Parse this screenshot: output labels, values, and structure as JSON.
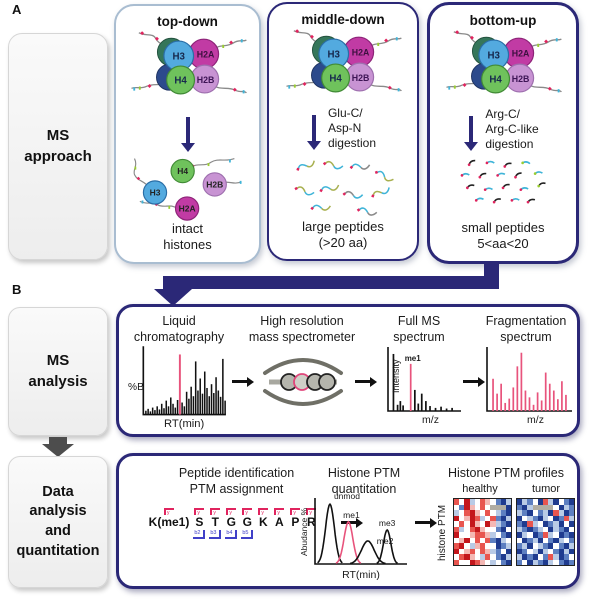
{
  "colors": {
    "navy": "#2b2877",
    "pink": "#e8537c",
    "red_mark": "#e0245e",
    "blue_ion": "#4040c8",
    "arrow_gray": "#4d4d4d"
  },
  "panel_a": {
    "label": "A",
    "sidebar_lines": [
      "MS",
      "approach"
    ],
    "histones": [
      {
        "label": "H3",
        "color": "#53aadf",
        "stroke": "#2a6ea6"
      },
      {
        "label": "H2A",
        "color": "#c13ba4",
        "stroke": "#8d2478"
      },
      {
        "label": "H4",
        "color": "#6fc25c",
        "stroke": "#418a36"
      },
      {
        "label": "H2B",
        "color": "#c893d3",
        "stroke": "#9e6fae"
      }
    ],
    "boxes": [
      {
        "title": "top-down",
        "digestion_lines": [],
        "caption_lines": [
          "intact",
          "histones"
        ]
      },
      {
        "title": "middle-down",
        "digestion_lines": [
          "Glu-C/",
          "Asp-N",
          "digestion"
        ],
        "caption_lines": [
          "large peptides",
          "(>20 aa)"
        ]
      },
      {
        "title": "bottom-up",
        "digestion_lines": [
          "Arg-C/",
          "Arg-C-like",
          "digestion"
        ],
        "caption_lines": [
          "small peptides",
          "5<aa<20"
        ]
      }
    ]
  },
  "panel_b": {
    "label": "B",
    "ms_sidebar_lines": [
      "MS",
      "analysis"
    ],
    "data_sidebar_lines": [
      "Data",
      "analysis",
      "and",
      "quantitation"
    ],
    "analysis_titles": {
      "lc": [
        "Liquid",
        "chromatography"
      ],
      "spec": [
        "High resolution",
        "mass spectrometer"
      ],
      "fullms": [
        "Full MS",
        "spectrum"
      ],
      "frag": [
        "Fragmentation",
        "spectrum"
      ]
    },
    "quant_titles": {
      "pep": [
        "Peptide identification",
        "PTM assignment"
      ],
      "quant": [
        "Histone PTM",
        "quantitation"
      ],
      "profiles": "Histone PTM profiles"
    },
    "sequence": {
      "residues": [
        "K(me1)",
        "S",
        "T",
        "G",
        "G",
        "K",
        "A",
        "P",
        "R"
      ],
      "y_label": "y",
      "b_labels": [
        "b2",
        "b3",
        "b4",
        "b5"
      ]
    }
  },
  "chart_data": [
    {
      "id": "lc",
      "type": "area",
      "xlabel": "RT(min)",
      "ylabel": "%B",
      "ylim": [
        0,
        100
      ],
      "values": [
        6,
        9,
        5,
        11,
        7,
        13,
        8,
        17,
        10,
        22,
        13,
        27,
        17,
        11,
        23,
        95,
        19,
        13,
        36,
        25,
        44,
        29,
        84,
        38,
        57,
        33,
        68,
        42,
        29,
        48,
        34,
        59,
        38,
        28,
        88,
        22
      ],
      "highlight_index": 15
    },
    {
      "id": "fullms",
      "type": "bar",
      "xlabel": "m/z",
      "ylabel": "Intensity",
      "ylim": [
        0,
        100
      ],
      "peaks": [
        {
          "x": 0.05,
          "h": 92,
          "c": "black"
        },
        {
          "x": 0.11,
          "h": 10,
          "c": "black"
        },
        {
          "x": 0.15,
          "h": 16,
          "c": "black"
        },
        {
          "x": 0.19,
          "h": 9,
          "c": "black"
        },
        {
          "x": 0.3,
          "h": 76,
          "c": "pink",
          "label": "me1"
        },
        {
          "x": 0.36,
          "h": 34,
          "c": "black"
        },
        {
          "x": 0.41,
          "h": 12,
          "c": "black"
        },
        {
          "x": 0.46,
          "h": 28,
          "c": "black"
        },
        {
          "x": 0.52,
          "h": 16,
          "c": "black"
        },
        {
          "x": 0.58,
          "h": 8,
          "c": "black"
        },
        {
          "x": 0.66,
          "h": 5,
          "c": "black"
        },
        {
          "x": 0.74,
          "h": 7,
          "c": "black"
        },
        {
          "x": 0.82,
          "h": 4,
          "c": "black"
        },
        {
          "x": 0.9,
          "h": 5,
          "c": "black"
        }
      ]
    },
    {
      "id": "frag",
      "type": "bar",
      "xlabel": "m/z",
      "ylabel": "",
      "ylim": [
        0,
        100
      ],
      "peaks": [
        {
          "x": 0.05,
          "h": 52,
          "c": "pink"
        },
        {
          "x": 0.1,
          "h": 28,
          "c": "pink"
        },
        {
          "x": 0.15,
          "h": 44,
          "c": "pink"
        },
        {
          "x": 0.2,
          "h": 13,
          "c": "pink"
        },
        {
          "x": 0.25,
          "h": 20,
          "c": "pink"
        },
        {
          "x": 0.3,
          "h": 38,
          "c": "pink"
        },
        {
          "x": 0.35,
          "h": 72,
          "c": "pink"
        },
        {
          "x": 0.4,
          "h": 94,
          "c": "pink"
        },
        {
          "x": 0.45,
          "h": 33,
          "c": "pink"
        },
        {
          "x": 0.5,
          "h": 22,
          "c": "pink"
        },
        {
          "x": 0.55,
          "h": 10,
          "c": "pink"
        },
        {
          "x": 0.6,
          "h": 30,
          "c": "pink"
        },
        {
          "x": 0.65,
          "h": 17,
          "c": "pink"
        },
        {
          "x": 0.7,
          "h": 62,
          "c": "pink"
        },
        {
          "x": 0.75,
          "h": 44,
          "c": "pink"
        },
        {
          "x": 0.8,
          "h": 33,
          "c": "pink"
        },
        {
          "x": 0.85,
          "h": 19,
          "c": "pink"
        },
        {
          "x": 0.9,
          "h": 48,
          "c": "pink"
        },
        {
          "x": 0.95,
          "h": 26,
          "c": "pink"
        }
      ]
    },
    {
      "id": "quant",
      "type": "line",
      "xlabel": "RT(min)",
      "ylabel": "Abudance %",
      "peaks": [
        {
          "label": "unmod",
          "cx": 0.17,
          "h": 88,
          "w": 0.05,
          "c": "black"
        },
        {
          "label": "me1",
          "cx": 0.38,
          "h": 62,
          "w": 0.05,
          "c": "pink"
        },
        {
          "label": "me2",
          "cx": 0.6,
          "h": 34,
          "w": 0.072,
          "c": "black"
        },
        {
          "label": "me3",
          "cx": 0.82,
          "h": 50,
          "w": 0.042,
          "c": "black"
        }
      ]
    },
    {
      "id": "profiles",
      "type": "heatmap",
      "groups": [
        "healthy",
        "tumor"
      ],
      "ylabel": "histone PTM",
      "palette": {
        "R": "#c3161c",
        "r": "#e8554f",
        "p": "#f4b8b4",
        "w": "#ffffff",
        "B": "#1f3b8f",
        "b": "#5d7fc1",
        "l": "#b9cbe6",
        "g": "#b1ada3"
      },
      "matrices": {
        "healthy": [
          "rwRlwrpwbBl",
          "wbRpwrwgggB",
          "lwrRpwrwlbB",
          "RwpRrlwrbBl",
          "wrwRpwRplbB",
          "rlwrRpwwbBw",
          "RwwprrplwbB",
          "wpRwrwrbBlw",
          "rRwlprwwBbl",
          "RwprwrplbwB",
          "wrRpwlrwbBl",
          "rwwRrpwlwbB"
        ],
        "tumor": [
          "BlbwBrlBwbB",
          "bBlggggwBlb",
          "lbBwblBrlBb",
          "BwlbBlwBbrl",
          "bBrlwBblBwB",
          "lbBblwBlbBw",
          "BlwBbrlwBbB",
          "wBblBwbBlwb",
          "blBwlbBwbBl",
          "BbwlBlwbBlB",
          "lBbBwbrlBbw",
          "bwBlbBlwbBb"
        ]
      }
    }
  ]
}
